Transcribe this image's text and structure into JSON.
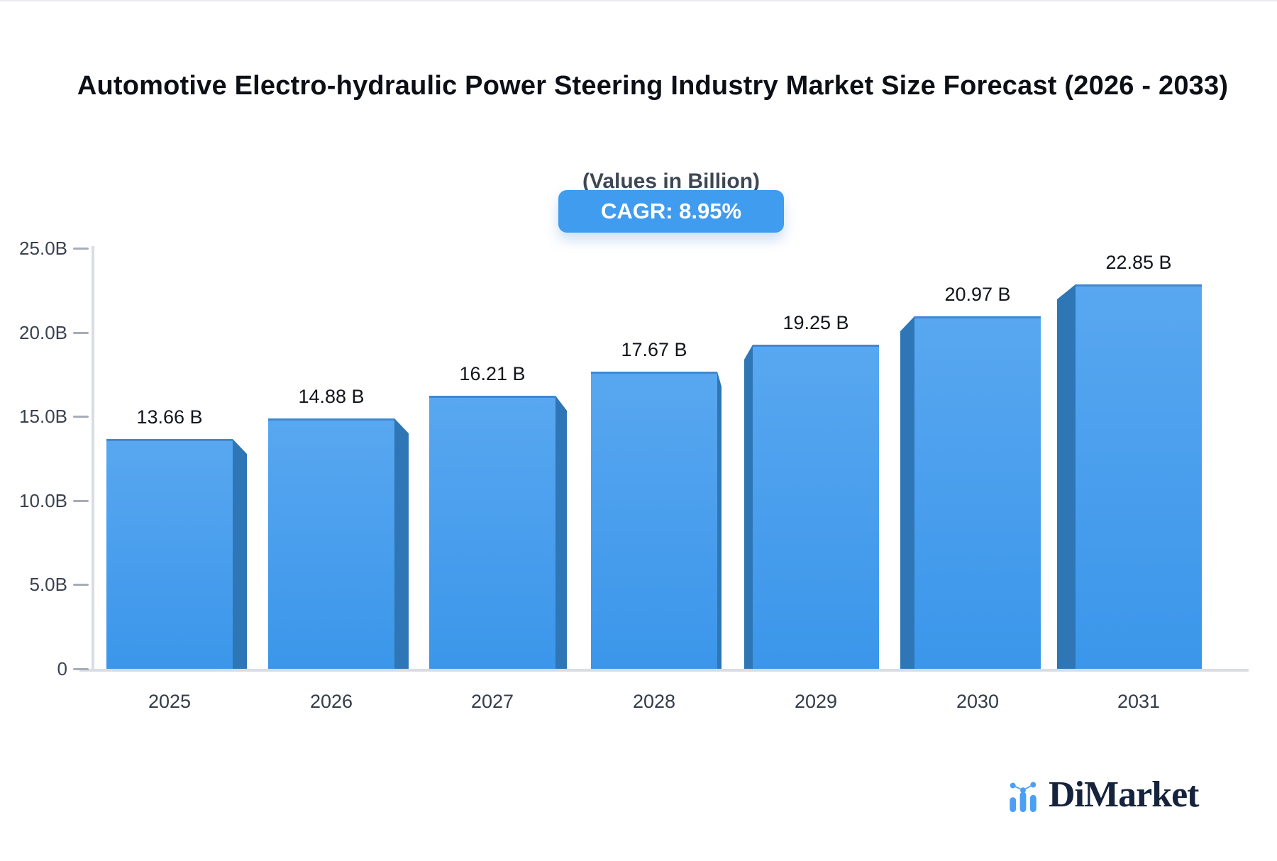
{
  "title": "Automotive Electro-hydraulic Power Steering Industry Market Size Forecast (2026 - 2033)",
  "subtitle": "(Values in Billion)",
  "badge": {
    "label": "CAGR: 8.95%"
  },
  "logo": {
    "text": "DiMarket"
  },
  "chart_data": {
    "type": "bar",
    "title": "Automotive Electro-hydraulic Power Steering Industry Market Size Forecast (2026 - 2033)",
    "subtitle": "(Values in Billion)",
    "cagr_label": "CAGR: 8.95%",
    "categories": [
      "2025",
      "2026",
      "2027",
      "2028",
      "2029",
      "2030",
      "2031"
    ],
    "values": [
      13.66,
      14.88,
      16.21,
      17.67,
      19.25,
      20.97,
      22.85
    ],
    "value_labels": [
      "13.66 B",
      "14.88 B",
      "16.21 B",
      "17.67 B",
      "19.25 B",
      "20.97 B",
      "22.85 B"
    ],
    "xlabel": "",
    "ylabel": "",
    "ylim": [
      0,
      25
    ],
    "yticks": [
      {
        "label": "25.0B",
        "value": 25
      },
      {
        "label": "20.0B",
        "value": 20
      },
      {
        "label": "15.0B",
        "value": 15
      },
      {
        "label": "10.0B",
        "value": 10
      },
      {
        "label": "5.0B",
        "value": 5
      },
      {
        "label": "0",
        "value": 0
      }
    ],
    "grid": false,
    "legend": "none",
    "bar_style": "3d-column",
    "colors": {
      "bar_face_top": "#58a7f0",
      "bar_face_bottom": "#3b96ea",
      "bar_top_edge": "#4188d2",
      "bar_side": "#2e76b5",
      "badge_bg": "#3f9cef",
      "badge_text": "#ffffff",
      "axis_line": "#d9dce2",
      "tick_text": "#3a4250",
      "label_text": "#12161c",
      "logo_blue": "#4aa0f4",
      "logo_navy": "#16233c"
    }
  }
}
